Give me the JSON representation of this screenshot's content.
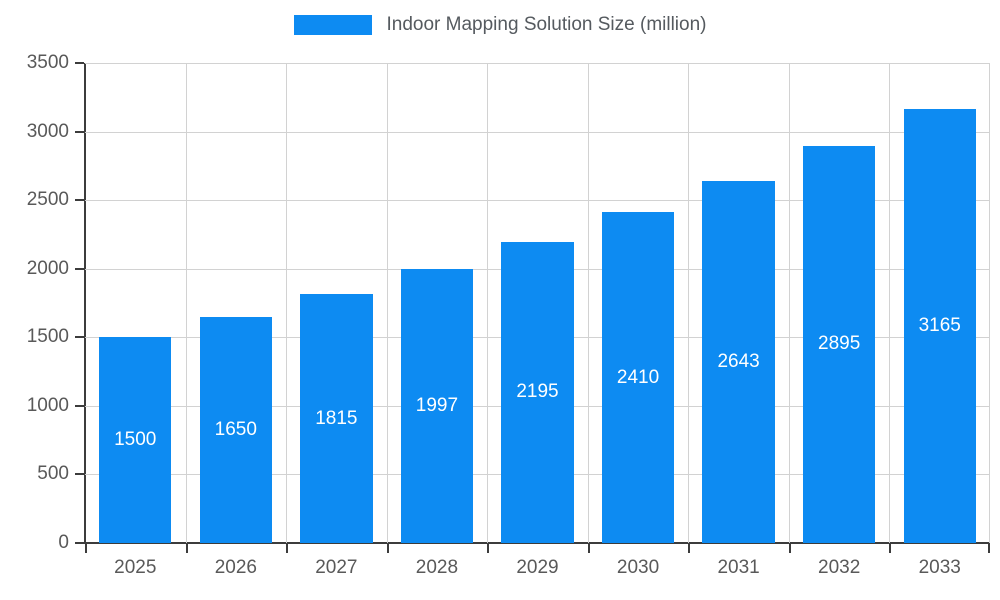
{
  "chart_data": {
    "type": "bar",
    "title": "Indoor Mapping Solution Size (million)",
    "categories": [
      "2025",
      "2026",
      "2027",
      "2028",
      "2029",
      "2030",
      "2031",
      "2032",
      "2033"
    ],
    "values": [
      1500,
      1650,
      1815,
      1997,
      2195,
      2410,
      2643,
      2895,
      3165
    ],
    "series": [
      {
        "name": "Indoor Mapping Solution Size (million)",
        "values": [
          1500,
          1650,
          1815,
          1997,
          2195,
          2410,
          2643,
          2895,
          3165
        ]
      }
    ],
    "xlabel": "",
    "ylabel": "",
    "ylim": [
      0,
      3500
    ],
    "ytick_step": 500,
    "yticks": [
      "0",
      "500",
      "1000",
      "1500",
      "2000",
      "2500",
      "3000",
      "3500"
    ],
    "grid": true,
    "legend_position": "top",
    "value_labels_visible": true
  },
  "colors": {
    "bar": "#0d8bf2",
    "bar_label": "#ffffff",
    "grid": "#d2d2d2",
    "axis": "#3c3c3c",
    "tick_text": "#595959",
    "legend_text": "#555a5f"
  }
}
